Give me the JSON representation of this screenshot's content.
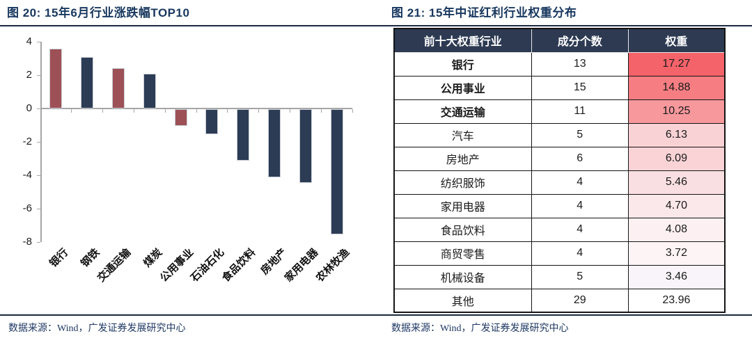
{
  "left_figure": {
    "title": "图 20:  15年6月行业涨跌幅TOP10",
    "source": "数据来源：Wind，广发证券发展研究中心"
  },
  "right_figure": {
    "title": "图 21:  15年中证红利行业权重分布",
    "source": "数据来源：Wind，广发证券发展研究中心"
  },
  "chart_data": [
    {
      "type": "bar",
      "title": "15年6月行业涨跌幅TOP10",
      "categories": [
        "银行",
        "钢铁",
        "交通运输",
        "煤炭",
        "公用事业",
        "石油石化",
        "食品饮料",
        "房地产",
        "家用电器",
        "农林牧渔"
      ],
      "values": [
        3.6,
        3.1,
        2.4,
        2.1,
        -1.0,
        -1.5,
        -3.1,
        -4.1,
        -4.4,
        -7.5
      ],
      "bar_colors": [
        "#9d5156",
        "#2d3c55",
        "#9d5156",
        "#2d3c55",
        "#9d5156",
        "#2d3c55",
        "#2d3c55",
        "#2d3c55",
        "#2d3c55",
        "#2d3c55"
      ],
      "xlabel": "",
      "ylabel": "",
      "ylim": [
        -8,
        4
      ],
      "yticks": [
        4,
        2,
        0,
        -2,
        -4,
        -6,
        -8
      ],
      "grid": false,
      "legend": "none"
    },
    {
      "type": "table",
      "title": "15年中证红利行业权重分布",
      "headers": [
        "前十大权重行业",
        "成分个数",
        "权重"
      ],
      "rows": [
        {
          "industry": "银行",
          "count": "13",
          "weight": "17.27",
          "highlight": true,
          "weight_bg": "#f4636a"
        },
        {
          "industry": "公用事业",
          "count": "15",
          "weight": "14.88",
          "highlight": true,
          "weight_bg": "#f67e83"
        },
        {
          "industry": "交通运输",
          "count": "11",
          "weight": "10.25",
          "highlight": true,
          "weight_bg": "#f7989c"
        },
        {
          "industry": "汽车",
          "count": "5",
          "weight": "6.13",
          "highlight": false,
          "weight_bg": "#f9d2d5"
        },
        {
          "industry": "房地产",
          "count": "6",
          "weight": "6.09",
          "highlight": false,
          "weight_bg": "#f9d3d6"
        },
        {
          "industry": "纺织服饰",
          "count": "4",
          "weight": "5.46",
          "highlight": false,
          "weight_bg": "#fadfe2"
        },
        {
          "industry": "家用电器",
          "count": "4",
          "weight": "4.70",
          "highlight": false,
          "weight_bg": "#fbe8ea"
        },
        {
          "industry": "食品饮料",
          "count": "4",
          "weight": "4.08",
          "highlight": false,
          "weight_bg": "#fdf0f2"
        },
        {
          "industry": "商贸零售",
          "count": "4",
          "weight": "3.72",
          "highlight": false,
          "weight_bg": "#fdf4f6"
        },
        {
          "industry": "机械设备",
          "count": "5",
          "weight": "3.46",
          "highlight": false,
          "weight_bg": "#f8f4fa"
        },
        {
          "industry": "其他",
          "count": "29",
          "weight": "23.96",
          "highlight": false,
          "weight_bg": "#ffffff"
        }
      ]
    }
  ],
  "colors": {
    "bar_navy": "#2d3c55",
    "bar_red": "#9d5156",
    "title_navy": "#17375e",
    "rule_navy": "#1a2940",
    "table_header_bg": "#2d3a52",
    "highlight_red_text": "#ff0000",
    "axis_gray": "#a6a6a6",
    "source_navy": "#1f3864"
  }
}
